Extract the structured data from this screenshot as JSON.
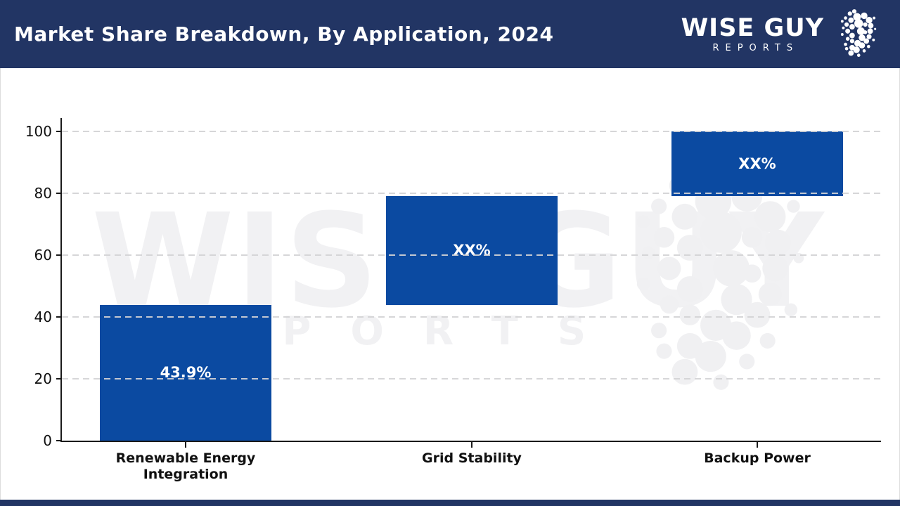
{
  "header": {
    "title": "Market Share Breakdown, By Application, 2024",
    "bg_color": "#223564",
    "logo": {
      "line1": "WISE GUY",
      "line2": "REPORTS"
    }
  },
  "watermark": {
    "line1": "WISE GUY",
    "line2": "REPORTS"
  },
  "chart_data": {
    "type": "bar",
    "subtype": "waterfall",
    "title": "Market Share Breakdown, By Application, 2024",
    "categories": [
      "Renewable Energy Integration",
      "Grid Stability",
      "Backup Power"
    ],
    "values": [
      43.9,
      35.2,
      20.9
    ],
    "segments": [
      {
        "category": "Renewable Energy Integration",
        "start": 0,
        "end": 43.9,
        "label": "43.9%"
      },
      {
        "category": "Grid Stability",
        "start": 43.9,
        "end": 79.1,
        "label": "XX%"
      },
      {
        "category": "Backup Power",
        "start": 79.1,
        "end": 100,
        "label": "XX%"
      }
    ],
    "y_ticks": [
      0,
      20,
      40,
      60,
      80,
      100
    ],
    "ylim": [
      0,
      104
    ],
    "xlabel": "",
    "ylabel": "",
    "grid": true,
    "legend": false,
    "bar_color": "#0b4aa1",
    "bar_label_color": "#ffffff",
    "axis_color": "#1a1a1a",
    "gridline_color": "#d3d3d5",
    "tick_label_color": "#111111"
  },
  "footer": {
    "bg_color": "#223564"
  }
}
